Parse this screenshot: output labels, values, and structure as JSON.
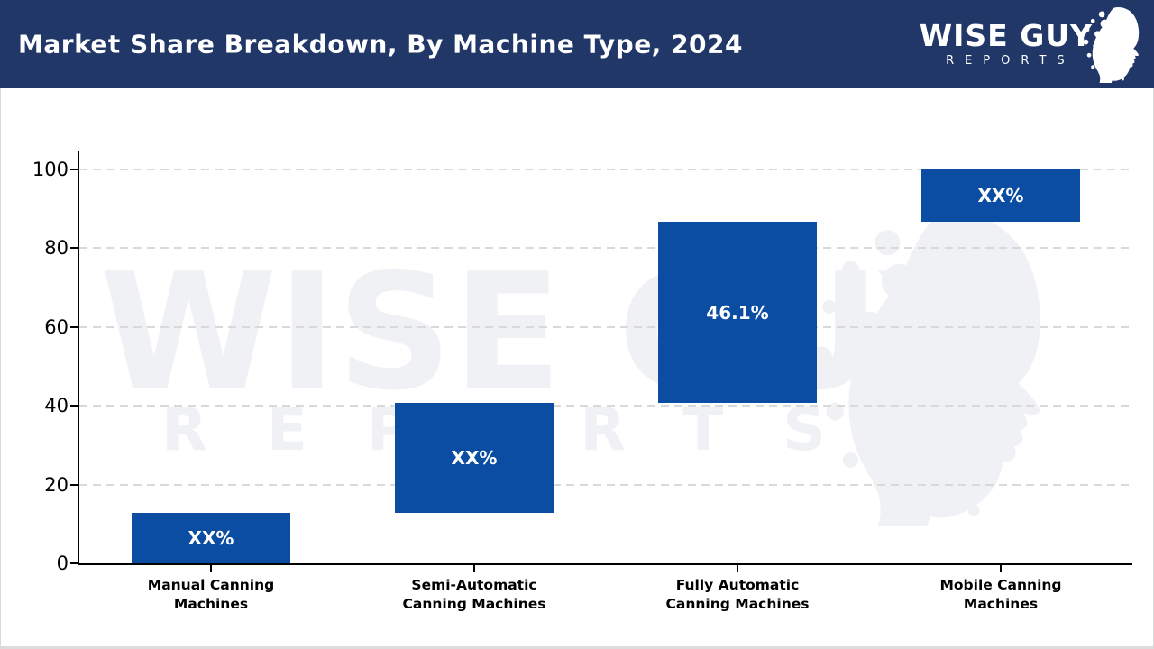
{
  "header": {
    "title": "Market Share Breakdown, By Machine Type, 2024",
    "logo": {
      "title": "WISE GUY",
      "subtitle": "REPORTS"
    }
  },
  "watermark": {
    "title": "WISE GUY",
    "subtitle": "REPORTS"
  },
  "chart_data": {
    "type": "bar",
    "variant": "waterfall-floating-segments",
    "title": "Market Share Breakdown, By Machine Type, 2024",
    "categories": [
      [
        "Manual Canning",
        "Machines"
      ],
      [
        "Semi-Automatic",
        "Canning Machines"
      ],
      [
        "Fully Automatic",
        "Canning Machines"
      ],
      [
        "Mobile Canning",
        "Machines"
      ]
    ],
    "bars": [
      {
        "category": "Manual Canning Machines",
        "start": 0,
        "end": 12.8,
        "value_label": "XX%"
      },
      {
        "category": "Semi-Automatic Canning Machines",
        "start": 12.8,
        "end": 40.6,
        "value_label": "XX%"
      },
      {
        "category": "Fully Automatic Canning Machines",
        "start": 40.6,
        "end": 86.7,
        "value_label": "46.1%"
      },
      {
        "category": "Mobile Canning Machines",
        "start": 86.7,
        "end": 100,
        "value_label": "XX%"
      }
    ],
    "xlabel": "",
    "ylabel": "",
    "yticks": [
      0,
      20,
      40,
      60,
      80,
      100
    ],
    "ylim": [
      0,
      104.5
    ],
    "grid": "horizontal-dashed",
    "legend": "none",
    "bar_color": "#0b4da2",
    "bar_label_color": "#ffffff"
  },
  "colors": {
    "header_bg": "#213767",
    "logo_fg": "#ffffff",
    "bar": "#0b4da2",
    "grid": "#d9d9d9",
    "axis": "#000000",
    "watermark": "#f0f1f4",
    "page_border": "#d9d9d9"
  }
}
